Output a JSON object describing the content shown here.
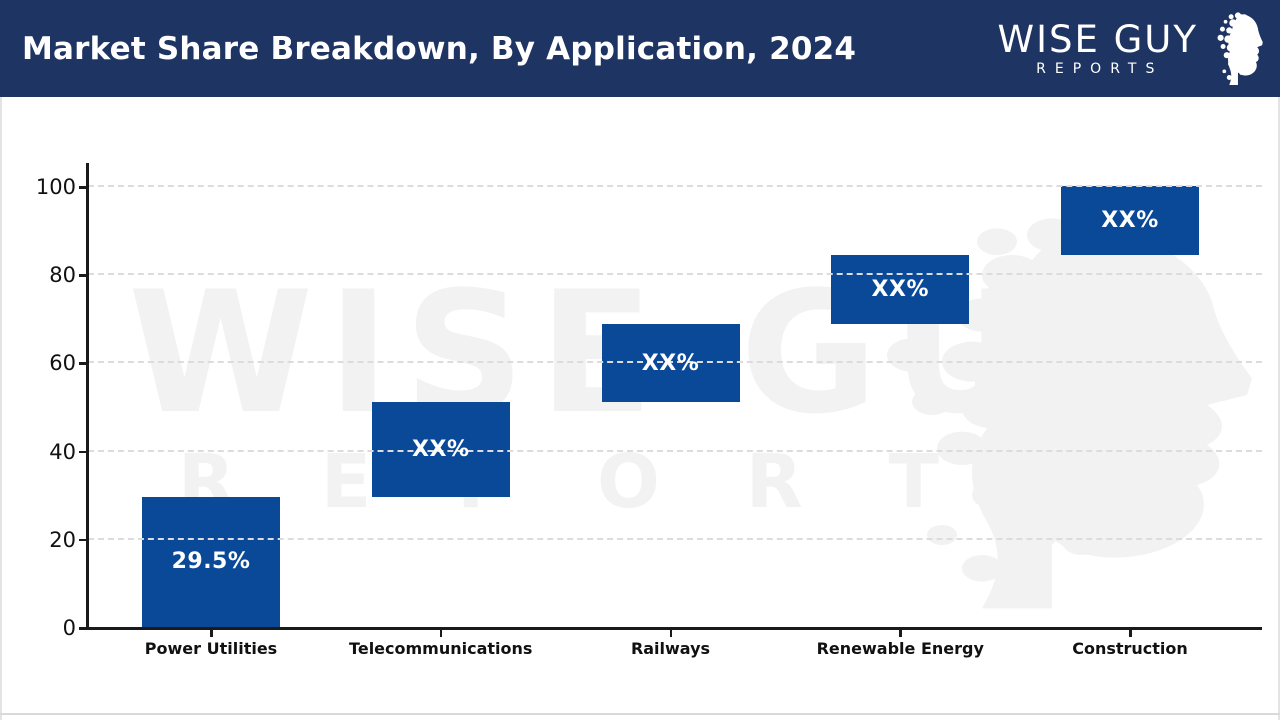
{
  "header": {
    "title": "Market Share Breakdown, By Application, 2024",
    "logo": {
      "line1": "WISE GUY",
      "line2": "REPORTS"
    }
  },
  "watermark": {
    "line1": "WISE GUY",
    "line2": "R E P O R T S"
  },
  "colors": {
    "header_bg": "#1e3462",
    "bar": "#0a4898",
    "grid": "#dcdcdc",
    "axis": "#1a1a1a",
    "bar_label_text": "#ffffff"
  },
  "chart_data": {
    "type": "bar",
    "subtype": "waterfall",
    "title": "Market Share Breakdown, By Application, 2024",
    "categories": [
      "Power Utilities",
      "Telecommunications",
      "Railways",
      "Renewable Energy",
      "Construction"
    ],
    "segments": [
      {
        "category": "Power Utilities",
        "base": 0,
        "top": 29.5,
        "label": "29.5%"
      },
      {
        "category": "Telecommunications",
        "base": 29.5,
        "top": 51.0,
        "label": "XX%"
      },
      {
        "category": "Railways",
        "base": 51.0,
        "top": 68.7,
        "label": "XX%"
      },
      {
        "category": "Renewable Energy",
        "base": 68.7,
        "top": 84.3,
        "label": "XX%"
      },
      {
        "category": "Construction",
        "base": 84.3,
        "top": 100.0,
        "label": "XX%"
      }
    ],
    "yticks": [
      0,
      20,
      40,
      60,
      80,
      100
    ],
    "ylim": [
      0,
      105
    ],
    "xlabel": "",
    "ylabel": "",
    "grid": "horizontal-dashed",
    "legend": "none",
    "bar_color": "#0a4898"
  }
}
